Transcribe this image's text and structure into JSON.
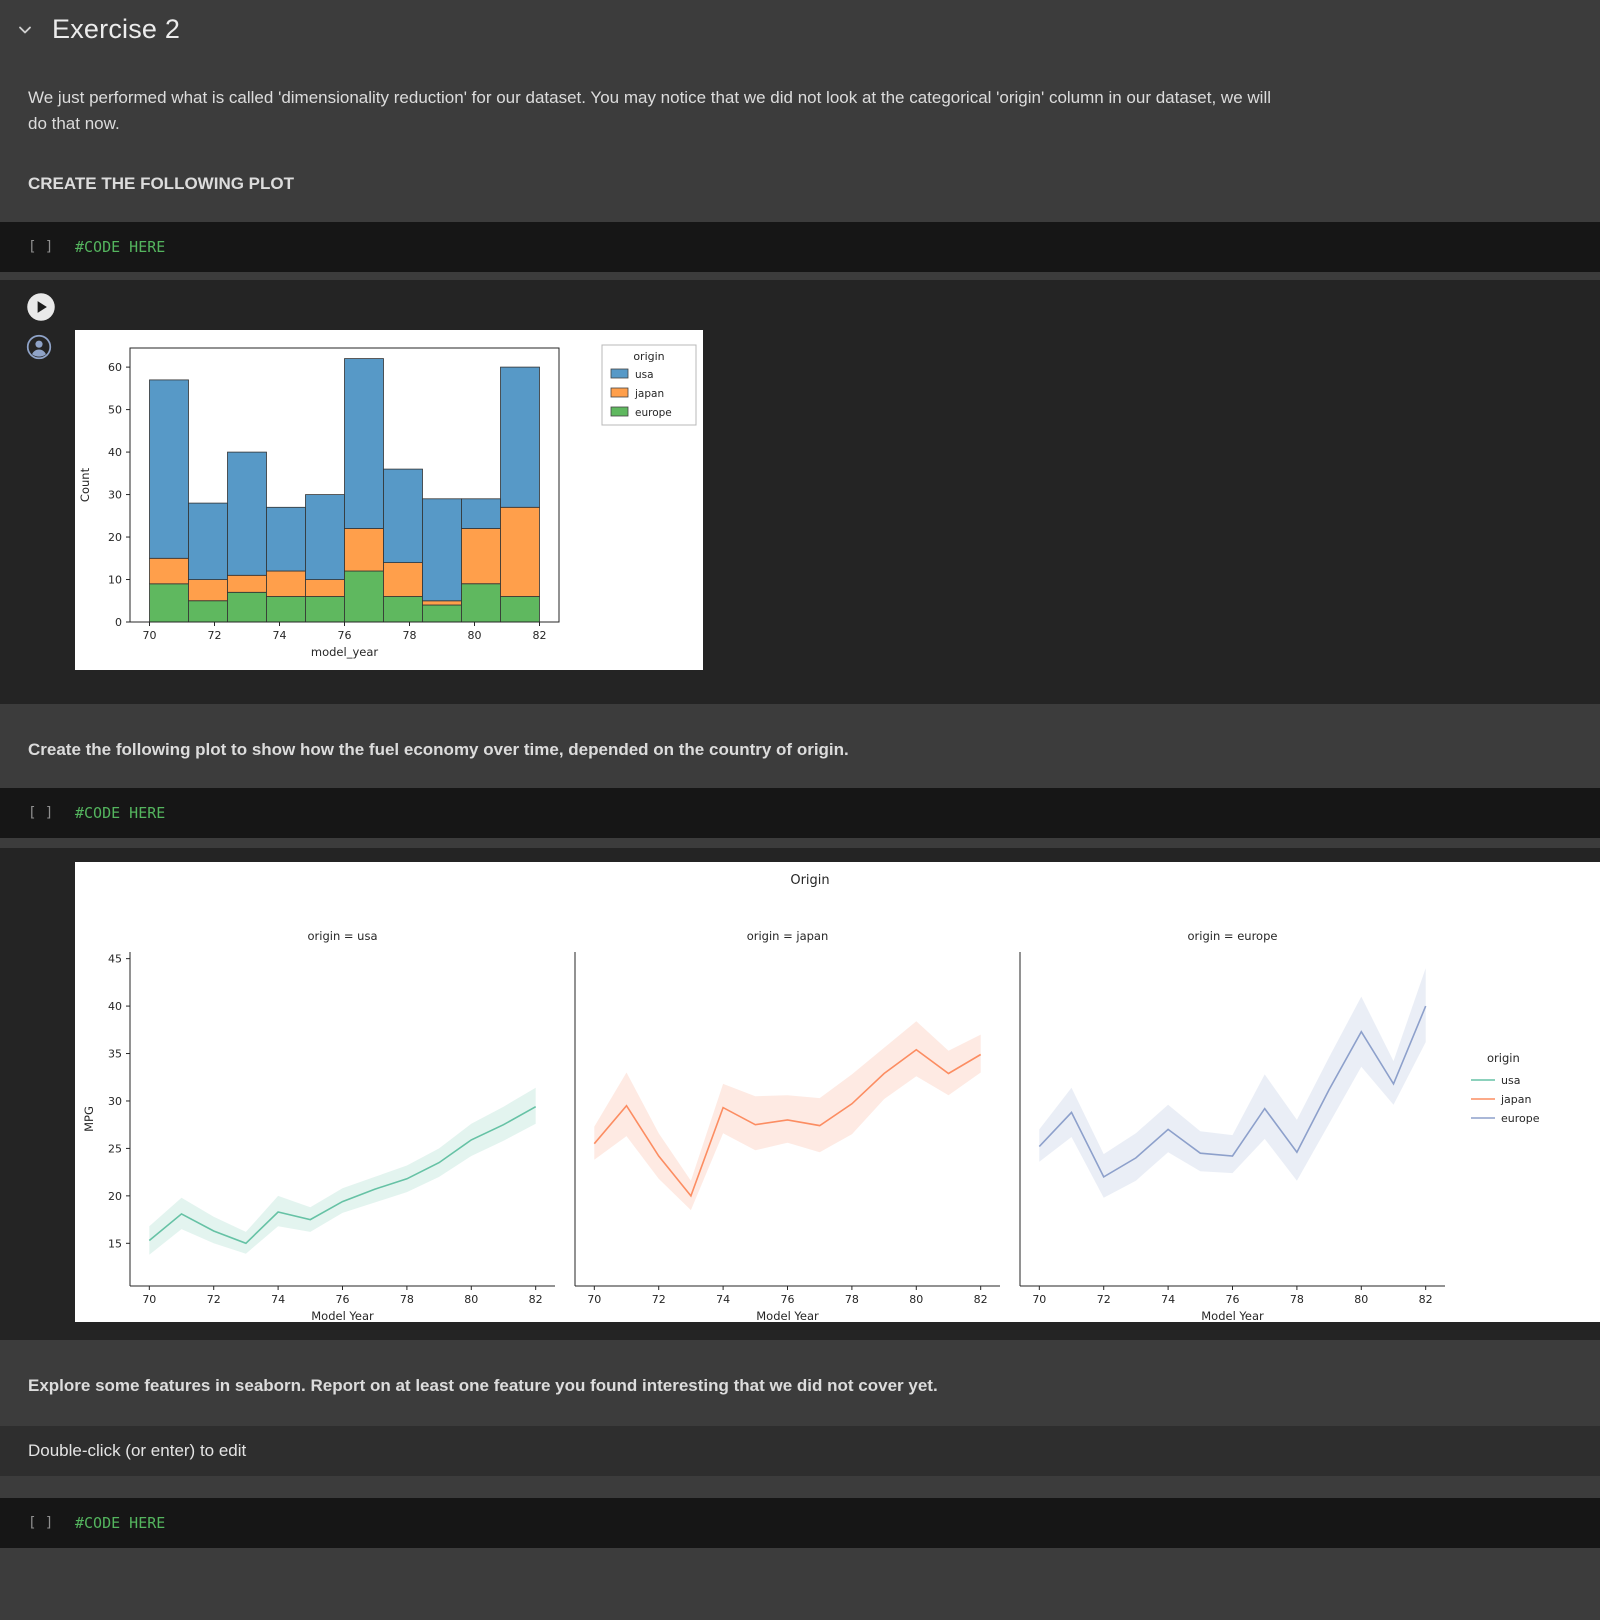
{
  "header": {
    "title": "Exercise 2"
  },
  "intro": {
    "text": "We just performed what is called 'dimensionality reduction' for our dataset. You may notice that we did not look at the categorical 'origin' column in our dataset, we will do that now."
  },
  "headings": {
    "create_plot": "CREATE THE FOLLOWING PLOT",
    "fuel_economy": "Create the following plot to show how the fuel economy over time, depended on the country of origin.",
    "explore": "Explore some features in seaborn. Report on at least one feature you found interesting that we did not cover yet."
  },
  "cells": {
    "prompt": "[ ]",
    "code_placeholder": "#CODE HERE",
    "markdown_placeholder": "Double-click (or enter) to edit"
  },
  "colors": {
    "code_comment_green": "#54b45e",
    "hist_usa_blue": "#5799c7",
    "hist_japan_orange": "#ff9f4b",
    "hist_europe_green": "#5fb85f",
    "line_usa_teal": "#66c2a5",
    "line_japan_orange": "#fc8d62",
    "line_europe_blue": "#8da0cb"
  },
  "chart_data": [
    {
      "type": "bar",
      "subtype": "stacked-histogram",
      "title": "",
      "xlabel": "model_year",
      "ylabel": "Count",
      "xlim": [
        69.4,
        82.6
      ],
      "ylim": [
        0,
        64.5
      ],
      "yticks": [
        0,
        10,
        20,
        30,
        40,
        50,
        60
      ],
      "xticks": [
        70,
        72,
        74,
        76,
        78,
        80,
        82
      ],
      "bin_width": 1.2,
      "bin_starts": [
        70,
        71.2,
        72.4,
        73.6,
        74.8,
        76,
        77.2,
        78.4,
        79.6,
        80.8
      ],
      "legend_title": "origin",
      "legend_order": [
        "usa",
        "japan",
        "europe"
      ],
      "series": [
        {
          "name": "europe",
          "color": "#5fb85f",
          "values": [
            9,
            5,
            7,
            6,
            6,
            12,
            6,
            4,
            9,
            6
          ]
        },
        {
          "name": "japan",
          "color": "#ff9f4b",
          "values": [
            6,
            5,
            4,
            6,
            4,
            10,
            8,
            1,
            13,
            21
          ]
        },
        {
          "name": "usa",
          "color": "#5799c7",
          "values": [
            42,
            18,
            29,
            15,
            20,
            40,
            22,
            24,
            7,
            33
          ]
        }
      ]
    },
    {
      "type": "line",
      "subtype": "facet-line-with-band",
      "title": "Origin",
      "xlabel": "Model Year",
      "ylabel": "MPG",
      "x": [
        70,
        71,
        72,
        73,
        74,
        75,
        76,
        77,
        78,
        79,
        80,
        81,
        82
      ],
      "xticks": [
        70,
        72,
        74,
        76,
        78,
        80,
        82
      ],
      "yticks": [
        15,
        20,
        25,
        30,
        35,
        40,
        45
      ],
      "ylim": [
        10.5,
        45.7
      ],
      "legend_title": "origin",
      "facets": [
        {
          "title": "origin = usa",
          "name": "usa",
          "color": "#66c2a5",
          "y": [
            15.3,
            18.1,
            16.3,
            15.0,
            18.3,
            17.5,
            19.4,
            20.7,
            21.8,
            23.5,
            25.9,
            27.5,
            29.4
          ],
          "lo": [
            13.8,
            16.5,
            15.0,
            13.9,
            16.8,
            16.2,
            18.2,
            19.3,
            20.4,
            22.0,
            24.2,
            25.8,
            27.6
          ],
          "hi": [
            16.8,
            19.8,
            17.8,
            16.2,
            20.0,
            18.8,
            20.8,
            22.0,
            23.2,
            25.0,
            27.6,
            29.4,
            31.4
          ]
        },
        {
          "title": "origin = japan",
          "name": "japan",
          "color": "#fc8d62",
          "y": [
            25.5,
            29.5,
            24.2,
            20.0,
            29.3,
            27.5,
            28.0,
            27.4,
            29.7,
            32.9,
            35.4,
            32.9,
            34.9
          ],
          "lo": [
            23.8,
            26.3,
            21.8,
            18.5,
            26.6,
            24.8,
            25.6,
            24.6,
            26.5,
            30.2,
            32.6,
            30.6,
            33.0
          ],
          "hi": [
            27.3,
            33.0,
            26.6,
            21.6,
            31.8,
            30.5,
            30.6,
            30.3,
            32.8,
            35.6,
            38.4,
            35.3,
            37.0
          ]
        },
        {
          "title": "origin = europe",
          "name": "europe",
          "color": "#8da0cb",
          "y": [
            25.2,
            28.8,
            22.0,
            24.0,
            27.0,
            24.5,
            24.2,
            29.2,
            24.6,
            31.2,
            37.3,
            31.8,
            40.0
          ],
          "lo": [
            23.6,
            26.2,
            19.8,
            21.6,
            24.6,
            22.6,
            22.4,
            26.0,
            21.6,
            27.6,
            33.6,
            29.6,
            36.2
          ],
          "hi": [
            27.0,
            31.4,
            24.4,
            26.6,
            29.6,
            26.8,
            26.4,
            32.8,
            28.0,
            34.6,
            41.0,
            34.2,
            44.0
          ]
        }
      ]
    }
  ]
}
